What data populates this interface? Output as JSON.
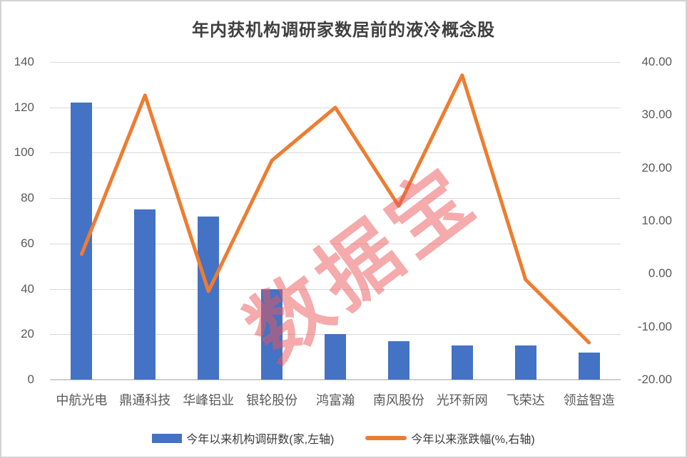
{
  "title": "年内获机构调研家数居前的液冷概念股",
  "watermark": "数据宝",
  "legend": [
    {
      "kind": "bar",
      "label": "今年以来机构调研数(家,左轴)",
      "color": "#4472C4"
    },
    {
      "kind": "line",
      "label": "今年以来涨跌幅(%,右轴)",
      "color": "#ED7D31"
    }
  ],
  "chart_data": {
    "type": "bar+line",
    "title": "年内获机构调研家数居前的液冷概念股",
    "categories": [
      "中航光电",
      "鼎通科技",
      "华峰铝业",
      "银轮股份",
      "鸿富瀚",
      "南风股份",
      "光环新网",
      "飞荣达",
      "领益智造"
    ],
    "series": [
      {
        "name": "今年以来机构调研数(家,左轴)",
        "type": "bar",
        "axis": "left",
        "color": "#4472C4",
        "values": [
          122,
          75,
          72,
          40,
          20,
          17,
          15,
          15,
          12
        ]
      },
      {
        "name": "今年以来涨跌幅(%,右轴)",
        "type": "line",
        "axis": "right",
        "color": "#ED7D31",
        "values": [
          3.7,
          33.7,
          -3.3,
          21.4,
          31.4,
          12.8,
          37.5,
          -1.1,
          -13.0
        ]
      }
    ],
    "left_axis": {
      "min": 0,
      "max": 140,
      "step": 20,
      "ticks": [
        "140",
        "120",
        "100",
        "80",
        "60",
        "40",
        "20",
        "0"
      ]
    },
    "right_axis": {
      "min": -20,
      "max": 40,
      "step": 10,
      "ticks": [
        "40.00",
        "30.00",
        "20.00",
        "10.00",
        "0.00",
        "-10.00",
        "-20.00"
      ]
    },
    "grid": true,
    "legend_position": "bottom"
  },
  "colors": {
    "bar": "#4472C4",
    "line": "#ED7D31",
    "gridline": "#D9D9D9",
    "axis_text": "#595959",
    "title_text": "#3F3F3F",
    "watermark": "rgba(235,85,90,0.5)"
  }
}
